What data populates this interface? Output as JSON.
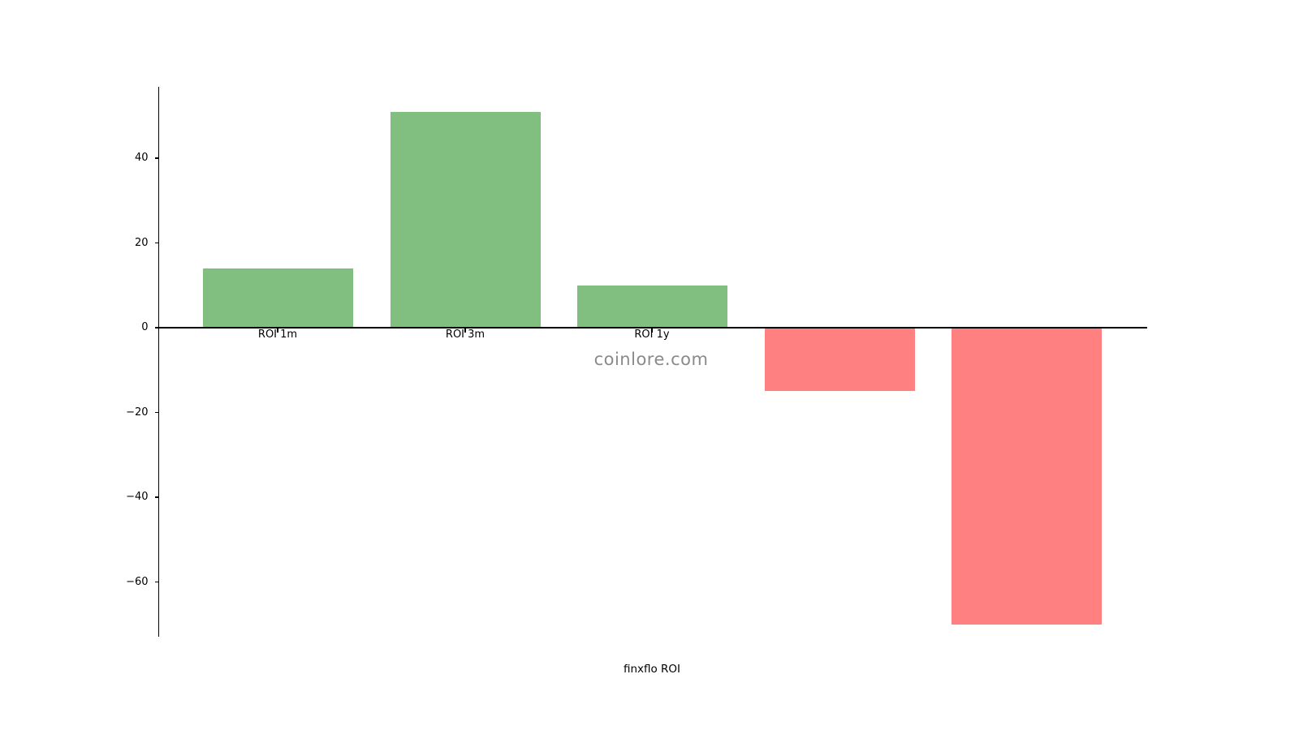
{
  "chart_data": {
    "type": "bar",
    "title": "finxflo ROI",
    "watermark": "coinlore.com",
    "categories": [
      "ROI 1m",
      "ROI 3m",
      "ROI 1y",
      "",
      ""
    ],
    "values": [
      14,
      51,
      10,
      -15,
      -70
    ],
    "series": [
      {
        "name": "finxflo ROI %",
        "values": [
          14,
          51,
          10,
          -15,
          -70
        ]
      }
    ],
    "bar_colors": {
      "positive": "#80bf80",
      "negative": "#ff8080"
    },
    "yticks": [
      40,
      20,
      0,
      -20,
      -40,
      -60
    ],
    "ytick_labels": [
      "40",
      "20",
      "0",
      "−20",
      "−40",
      "−60"
    ],
    "ylim": [
      -73,
      57
    ],
    "xlabel": "finxflo ROI",
    "ylabel": "",
    "grid": false,
    "legend": "none",
    "x_axis_position": "zero",
    "axis_color": "#000000",
    "text_color": "#000000",
    "watermark_color": "#8a8a8a"
  }
}
